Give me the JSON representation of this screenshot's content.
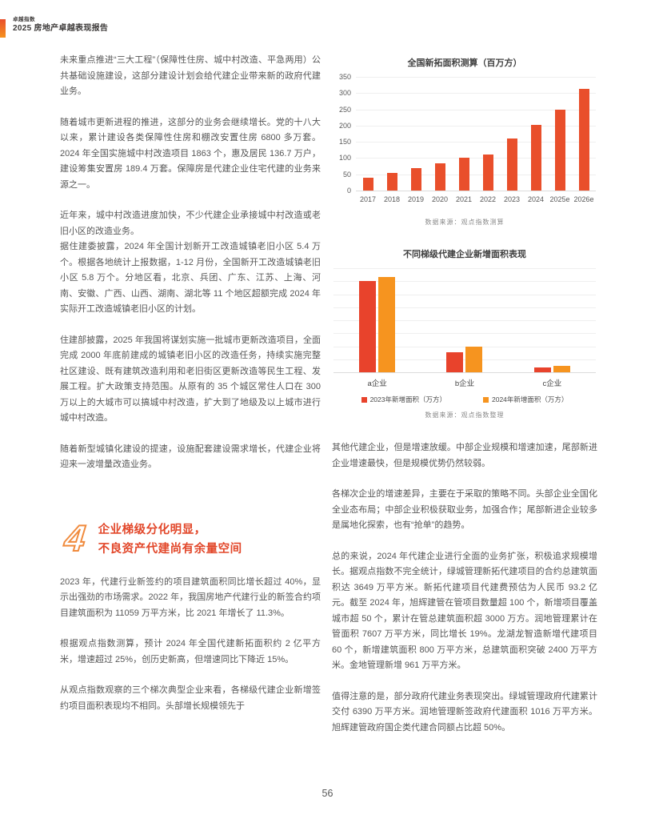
{
  "brand": {
    "tagline": "卓越指数",
    "title": "2025 房地产卓越表现报告"
  },
  "page": {
    "number": "56"
  },
  "left_column": {
    "paragraphs": [
      "未来重点推进“三大工程”（保障性住房、城中村改造、平急两用）公共基础设施建设，这部分建设计划会给代建企业带来新的政府代建业务。",
      "随着城市更新进程的推进，这部分的业务会继续增长。党的十八大以来，累计建设各类保障性住房和棚改安置住房 6800 多万套。2024 年全国实施城中村改造项目 1863 个，惠及居民 136.7 万户，建设筹集安置房 189.4 万套。保障房是代建企业住宅代建的业务来源之一。",
      "近年来，城中村改造进度加快，不少代建企业承接城中村改造或老旧小区的改造业务。\n据住建委披露，2024 年全国计划新开工改造城镇老旧小区 5.4 万个。根据各地统计上报数据，1-12 月份，全国新开工改造城镇老旧小区 5.8 万个。分地区看，北京、兵团、广东、江苏、上海、河南、安徽、广西、山西、湖南、湖北等 11 个地区超额完成 2024 年实际开工改造城镇老旧小区的计划。",
      "住建部披露，2025 年我国将谋划实施一批城市更新改造项目，全面完成 2000 年底前建成的城镇老旧小区的改造任务，持续实施完整社区建设、既有建筑改造利用和老旧街区更新改造等民生工程、发展工程。扩大政策支持范围。从原有的 35 个城区常住人口在 300 万以上的大城市可以搞城中村改造，扩大到了地级及以上城市进行城中村改造。",
      "随着新型城镇化建设的提速，设施配套建设需求增长，代建企业将迎来一波增量改造业务。"
    ]
  },
  "section4": {
    "number": "4",
    "title_line1": "企业梯级分化明显，",
    "title_line2": "不良资产代建尚有余量空间",
    "paragraphs": [
      "2023 年，代建行业新签约的项目建筑面积同比增长超过 40%，显示出强劲的市场需求。2022 年，我国房地产代建行业的新签合约项目建筑面积为 11059 万平方米，比 2021 年增长了 11.3%。",
      "根据观点指数测算，预计 2024 年全国代建新拓面积约 2 亿平方米，增速超过 25%，创历史新高，但增速同比下降近 15%。",
      "从观点指数观察的三个梯次典型企业来看，各梯级代建企业新增签约项目面积表现均不相同。头部增长规模领先于"
    ]
  },
  "right_column": {
    "paragraphs": [
      "其他代建企业，但是增速放缓。中部企业规模和增速加速，尾部新进企业增速最快，但是规模优势仍然较弱。",
      "各梯次企业的增速差异，主要在于采取的策略不同。头部企业全国化全业态布局；中部企业积极获取业务，加强合作；尾部新进企业较多是属地化探索，也有“抢单”的趋势。",
      "总的来说，2024 年代建企业进行全面的业务扩张，积极追求规模增长。据观点指数不完全统计，绿城管理新拓代建项目的合约总建筑面积达 3649 万平方米。新拓代建项目代建费预估为人民币 93.2 亿元。截至 2024 年，旭辉建管在管项目数量超 100 个，新增项目覆盖城市超 50 个，累计在管总建筑面积超 3000 万方。润地管理累计在管面积 7607 万平方米，同比增长 19%。龙湖龙智造新增代建项目 60 个，新增建筑面积 800 万平方米，总建筑面积突破 2400 万平方米。金地管理新增 961 万平方米。",
      "值得注意的是，部分政府代建业务表现突出。绿城管理政府代建累计交付 6390 万平方米。润地管理新签政府代建面积 1016 万平方米。旭辉建管政府国企类代建合同额占比超 50%。"
    ]
  },
  "chart_data": [
    {
      "type": "bar",
      "title": "全国新拓面积测算（百万方）",
      "categories": [
        "2017",
        "2018",
        "2019",
        "2020",
        "2021",
        "2022",
        "2023",
        "2024",
        "2025e",
        "2026e"
      ],
      "values": [
        40,
        55,
        68,
        84,
        100,
        110,
        160,
        202,
        250,
        312
      ],
      "ylim": [
        0,
        350
      ],
      "yticks": [
        0,
        50,
        100,
        150,
        200,
        250,
        300,
        350
      ],
      "bar_color": "#E94F2B",
      "grid": true,
      "source": "数据来源：观点指数测算"
    },
    {
      "type": "bar",
      "title": "不同梯级代建企业新增面积表现",
      "categories": [
        "a企业",
        "b企业",
        "c企业"
      ],
      "series": [
        {
          "name": "2023年新增面积（万方）",
          "color": "#E8432C",
          "values": [
            3500,
            780,
            190
          ]
        },
        {
          "name": "2024年新增面积（万方）",
          "color": "#F6941F",
          "values": [
            3650,
            980,
            250
          ]
        }
      ],
      "ylim": [
        0,
        4000
      ],
      "grid_step": 500,
      "grid": true,
      "legend_position": "bottom",
      "source": "数据来源：观点指数整理"
    }
  ],
  "colors": {
    "accent_red_orange": "#E94F2B",
    "accent_orange": "#F6941F",
    "heading": "#E2472A",
    "brand_mark": "#F26B21"
  }
}
